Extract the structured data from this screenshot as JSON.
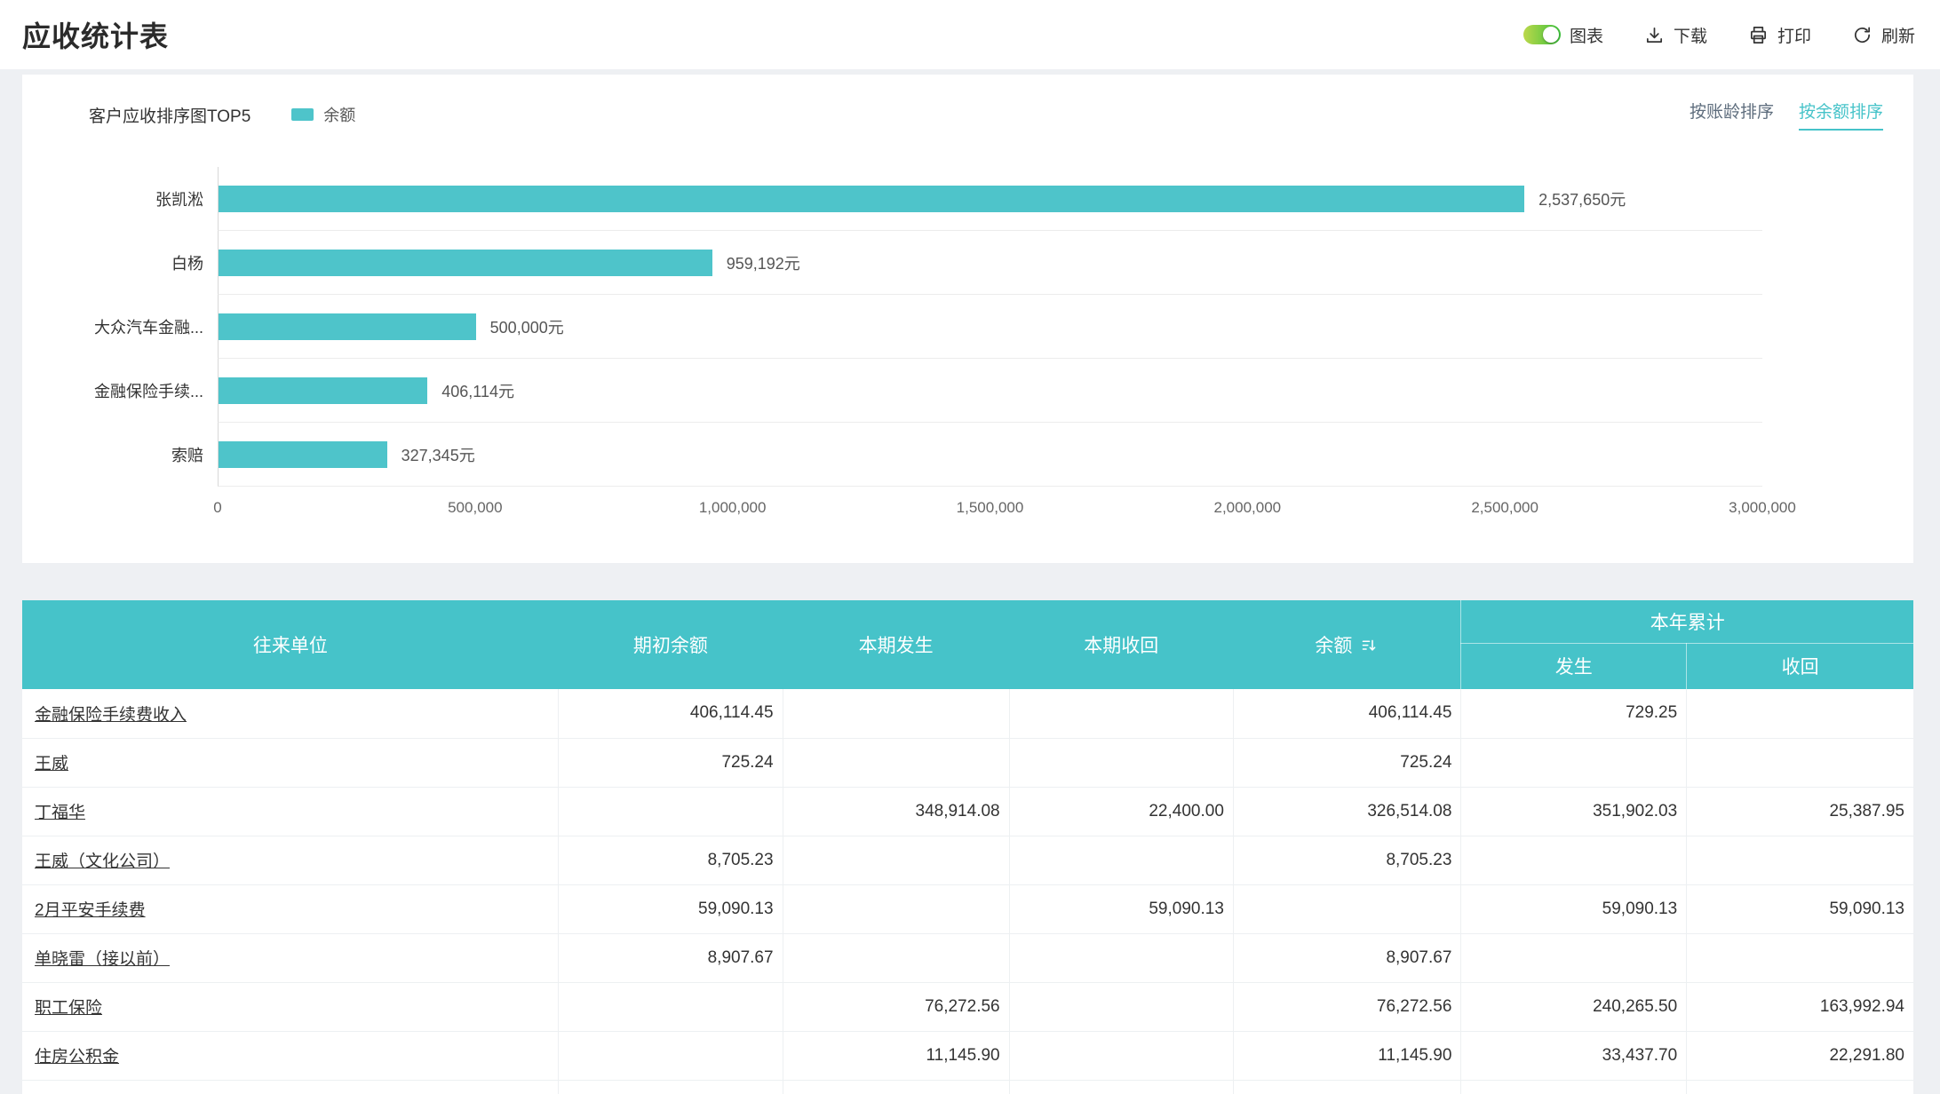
{
  "colors": {
    "accent": "#46c3c9",
    "bar": "#4ec4ca",
    "page_bg": "#eef0f3"
  },
  "header": {
    "title": "应收统计表",
    "toolbar": {
      "chart_toggle_label": "图表",
      "chart_toggle_on": true,
      "download_label": "下载",
      "print_label": "打印",
      "refresh_label": "刷新"
    }
  },
  "chart": {
    "title": "客户应收排序图TOP5",
    "legend_label": "余额",
    "sort_tabs": [
      {
        "label": "按账龄排序",
        "active": false
      },
      {
        "label": "按余额排序",
        "active": true
      }
    ]
  },
  "chart_data": {
    "type": "bar",
    "orientation": "horizontal",
    "title": "客户应收排序图TOP5",
    "legend": [
      "余额"
    ],
    "categories": [
      "张凯淞",
      "白杨",
      "大众汽车金融...",
      "金融保险手续...",
      "索赔"
    ],
    "values": [
      2537650,
      959192,
      500000,
      406114,
      327345
    ],
    "value_labels": [
      "2,537,650元",
      "959,192元",
      "500,000元",
      "406,114元",
      "327,345元"
    ],
    "x_ticks": [
      "0",
      "500,000",
      "1,000,000",
      "1,500,000",
      "2,000,000",
      "2,500,000",
      "3,000,000"
    ],
    "xlim": [
      0,
      3000000
    ],
    "grid": true,
    "legend_position": "top"
  },
  "table": {
    "columns": [
      "往来单位",
      "期初余额",
      "本期发生",
      "本期收回",
      "余额",
      "本年累计"
    ],
    "subcolumns": [
      "发生",
      "收回"
    ],
    "rows": [
      {
        "name": "金融保险手续费收入",
        "opening": "406,114.45",
        "occurred": "",
        "recovered": "",
        "balance": "406,114.45",
        "ytd_occurred": "729.25",
        "ytd_recovered": ""
      },
      {
        "name": "王威",
        "opening": "725.24",
        "occurred": "",
        "recovered": "",
        "balance": "725.24",
        "ytd_occurred": "",
        "ytd_recovered": ""
      },
      {
        "name": "丁福华",
        "opening": "",
        "occurred": "348,914.08",
        "recovered": "22,400.00",
        "balance": "326,514.08",
        "ytd_occurred": "351,902.03",
        "ytd_recovered": "25,387.95"
      },
      {
        "name": "王威（文化公司）",
        "opening": "8,705.23",
        "occurred": "",
        "recovered": "",
        "balance": "8,705.23",
        "ytd_occurred": "",
        "ytd_recovered": ""
      },
      {
        "name": "2月平安手续费",
        "opening": "59,090.13",
        "occurred": "",
        "recovered": "59,090.13",
        "balance": "",
        "ytd_occurred": "59,090.13",
        "ytd_recovered": "59,090.13"
      },
      {
        "name": "单晓雷（接以前）",
        "opening": "8,907.67",
        "occurred": "",
        "recovered": "",
        "balance": "8,907.67",
        "ytd_occurred": "",
        "ytd_recovered": ""
      },
      {
        "name": "职工保险",
        "opening": "",
        "occurred": "76,272.56",
        "recovered": "",
        "balance": "76,272.56",
        "ytd_occurred": "240,265.50",
        "ytd_recovered": "163,992.94"
      },
      {
        "name": "住房公积金",
        "opening": "",
        "occurred": "11,145.90",
        "recovered": "",
        "balance": "11,145.90",
        "ytd_occurred": "33,437.70",
        "ytd_recovered": "22,291.80"
      },
      {
        "name": "",
        "opening": "",
        "occurred": "",
        "recovered": "",
        "balance": "",
        "ytd_occurred": "",
        "ytd_recovered": ""
      }
    ]
  }
}
